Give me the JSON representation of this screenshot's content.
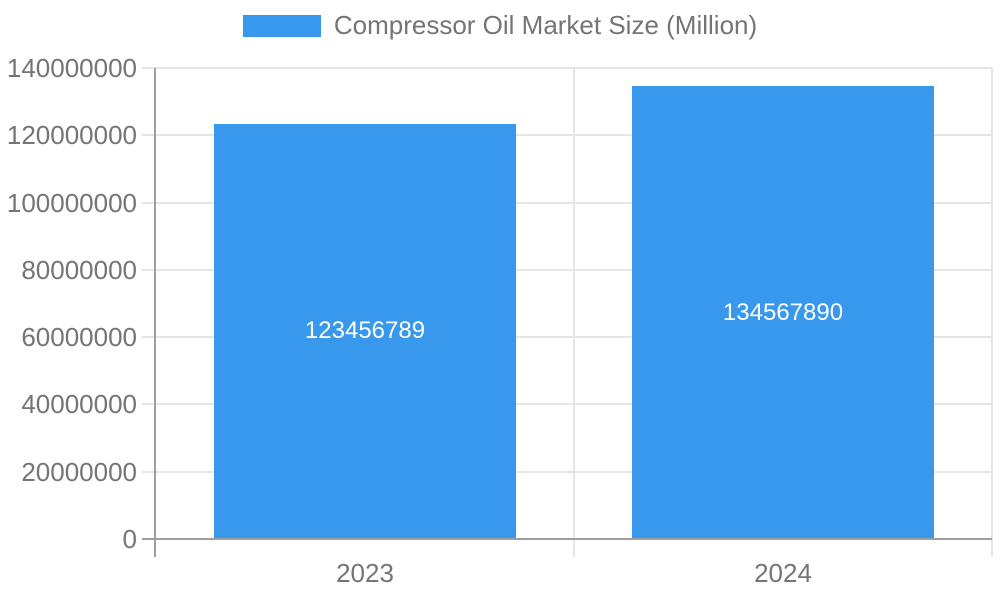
{
  "legend": {
    "label": "Compressor Oil Market Size (Million)"
  },
  "chart_data": {
    "type": "bar",
    "title": "Compressor Oil Market Size (Million)",
    "categories": [
      "2023",
      "2024"
    ],
    "values": [
      123456789,
      134567890
    ],
    "data_labels": [
      "123456789",
      "134567890"
    ],
    "ytick_labels": [
      "0",
      "20000000",
      "40000000",
      "60000000",
      "80000000",
      "100000000",
      "120000000",
      "140000000"
    ],
    "ylim": [
      0,
      140000000
    ],
    "ytick_step": 20000000,
    "xlabel": "",
    "ylabel": "",
    "grid": true,
    "legend_position": "top",
    "colors": {
      "bar": "#3898EC",
      "bar_label_text": "#FFFFFF",
      "axis_text": "#757575",
      "grid_line": "#E5E5E5",
      "axis_line": "#9E9E9E"
    }
  }
}
